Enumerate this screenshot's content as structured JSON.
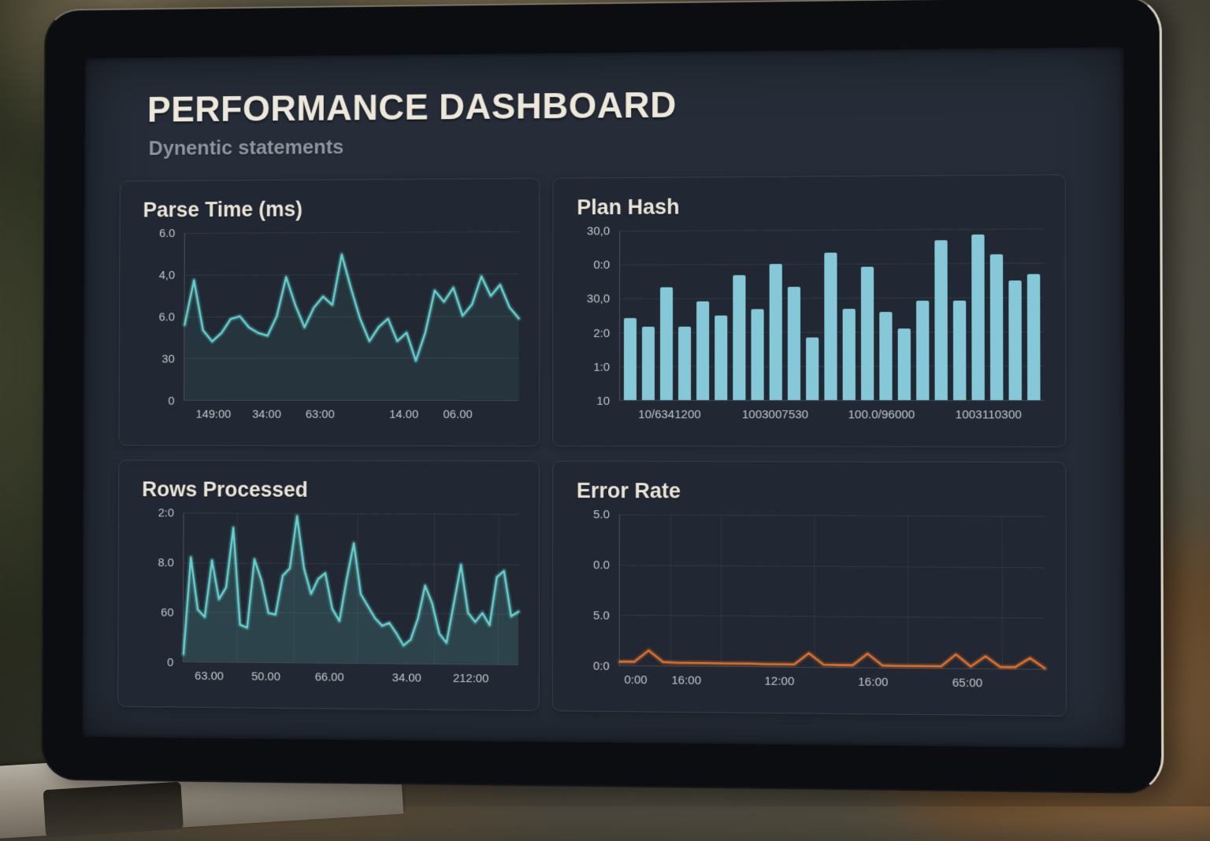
{
  "header": {
    "title": "PERFORMANCE DASHBOARD",
    "subtitle": "Dynentic statements"
  },
  "theme": {
    "screen_bg": "#262d38",
    "panel_bg": "#222833",
    "teal": "#63d1cf",
    "bar_blue": "#85c9d9",
    "orange": "#e0702b"
  },
  "chart_data": [
    {
      "id": "parse_time",
      "type": "line",
      "title": "Parse Time (ms)",
      "color": "#63d1cf",
      "fill_opacity": 0.07,
      "grid": "y",
      "ylim": [
        0,
        6
      ],
      "y_ticks": [
        "6.0",
        "4,0",
        "6.0",
        "30",
        "0"
      ],
      "x_ticks": [
        "149:00",
        "34:00",
        "63:00",
        "14.00",
        "06.00"
      ],
      "x_tick_pos": [
        0.09,
        0.25,
        0.41,
        0.66,
        0.82
      ],
      "values": [
        2.7,
        4.3,
        2.5,
        2.1,
        2.4,
        2.9,
        3.0,
        2.6,
        2.4,
        2.3,
        3.0,
        4.4,
        3.4,
        2.6,
        3.3,
        3.7,
        3.4,
        5.2,
        4.0,
        2.9,
        2.1,
        2.6,
        2.9,
        2.1,
        2.4,
        1.4,
        2.4,
        3.9,
        3.5,
        4.0,
        3.0,
        3.4,
        4.4,
        3.7,
        4.1,
        3.3,
        2.9
      ]
    },
    {
      "id": "plan_hash",
      "type": "bar",
      "title": "Plan Hash",
      "color": "#85c9d9",
      "grid": "y",
      "ylim": [
        0,
        30
      ],
      "y_ticks": [
        "30,0",
        "0:0",
        "30,0",
        "2:0",
        "1:0",
        "10"
      ],
      "x_ticks": [
        "10/6341200",
        "1003007530",
        "100.0/96000",
        "1003110300"
      ],
      "x_tick_pos": [
        0.12,
        0.37,
        0.62,
        0.87
      ],
      "values": [
        14.5,
        13,
        20,
        13,
        17.5,
        15,
        22,
        16,
        24,
        20,
        11,
        26,
        16,
        23.5,
        15.5,
        12.5,
        17.5,
        28,
        17.5,
        29,
        25.5,
        21,
        22
      ]
    },
    {
      "id": "rows_processed",
      "type": "area",
      "title": "Rows Processed",
      "color": "#63d1cf",
      "fill_opacity": 0.16,
      "grid": "xy",
      "ylim": [
        0,
        10
      ],
      "y_ticks": [
        "2:0",
        "8.0",
        "60",
        "0"
      ],
      "x_ticks": [
        "63.00",
        "50.00",
        "66.00",
        "34.00",
        "212:00"
      ],
      "x_tick_pos": [
        0.08,
        0.25,
        0.44,
        0.67,
        0.86
      ],
      "values": [
        0.5,
        7,
        3.5,
        3,
        6.8,
        4.2,
        5,
        9,
        2.5,
        2.3,
        6.9,
        5.5,
        3.3,
        3.2,
        5.8,
        6.3,
        9.8,
        6.3,
        4.6,
        5.6,
        6,
        3.6,
        2.8,
        5.6,
        8,
        4.6,
        3.8,
        3,
        2.5,
        2.7,
        2,
        1.2,
        1.6,
        3,
        5.2,
        4,
        2,
        1.4,
        4,
        6.6,
        3.4,
        2.8,
        3.4,
        2.6,
        5.8,
        6.2,
        3.2,
        3.5
      ]
    },
    {
      "id": "error_rate",
      "type": "line",
      "title": "Error Rate",
      "color": "#e0702b",
      "fill_opacity": 0,
      "grid": "xy",
      "ylim": [
        0,
        5
      ],
      "y_ticks": [
        "5.0",
        "0.0",
        "5.0",
        "0:0"
      ],
      "x_ticks": [
        "0:00",
        "16:00",
        "12:00",
        "16:00",
        "65:00"
      ],
      "x_tick_pos": [
        0.04,
        0.16,
        0.38,
        0.6,
        0.82
      ],
      "values": [
        0.12,
        0.12,
        0.5,
        0.12,
        0.1,
        0.1,
        0.1,
        0.09,
        0.09,
        0.09,
        0.08,
        0.08,
        0.08,
        0.45,
        0.08,
        0.07,
        0.07,
        0.45,
        0.07,
        0.06,
        0.06,
        0.06,
        0.06,
        0.45,
        0.06,
        0.4,
        0.05,
        0.05,
        0.35,
        0.02
      ]
    }
  ]
}
